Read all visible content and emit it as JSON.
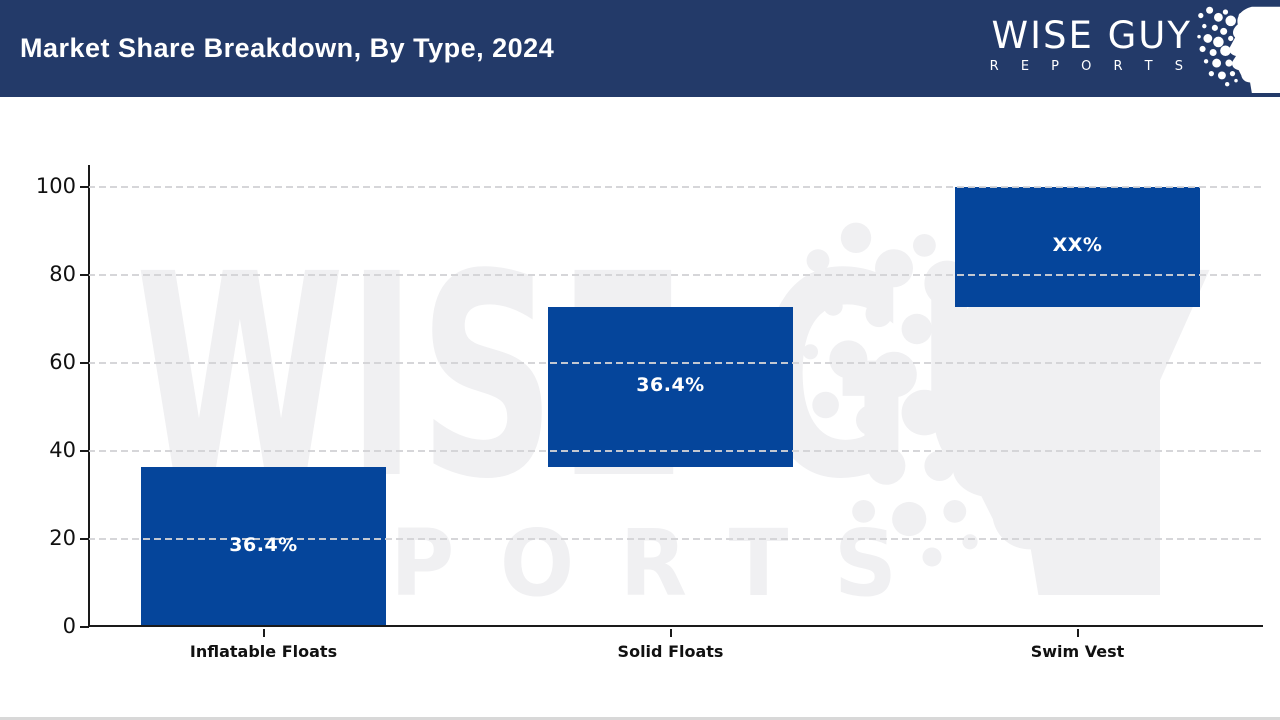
{
  "header": {
    "title": "Market Share Breakdown, By Type, 2024"
  },
  "logo": {
    "line1": "WISE GUY",
    "line2": "R E P O R T S"
  },
  "watermark": {
    "line1": "WISE GUY",
    "line2": "REPORTS"
  },
  "colors": {
    "header_background": "#233a69",
    "bar_blue": "#05459b",
    "grid_gray": "#d3d3d6",
    "watermark_gray": "#f0f0f2"
  },
  "chart_data": {
    "type": "bar",
    "subtype": "floating-stacked-waterfall",
    "title": "Market Share Breakdown, By Type, 2024",
    "categories": [
      "Inflatable Floats",
      "Solid Floats",
      "Swim Vest"
    ],
    "series": [
      {
        "name": "Market Share",
        "segments": [
          {
            "category": "Inflatable Floats",
            "start": 0,
            "end": 36.4,
            "label": "36.4%"
          },
          {
            "category": "Solid Floats",
            "start": 36.4,
            "end": 72.8,
            "label": "36.4%"
          },
          {
            "category": "Swim Vest",
            "start": 72.8,
            "end": 100,
            "label": "XX%"
          }
        ]
      }
    ],
    "xlabel": "",
    "ylabel": "",
    "ylim": [
      0,
      100
    ],
    "yticks": [
      0,
      20,
      40,
      60,
      80,
      100
    ],
    "grid": "horizontal-dashed",
    "legend": "none",
    "bar_color": "#05459b",
    "bar_label_color": "#ffffff"
  }
}
